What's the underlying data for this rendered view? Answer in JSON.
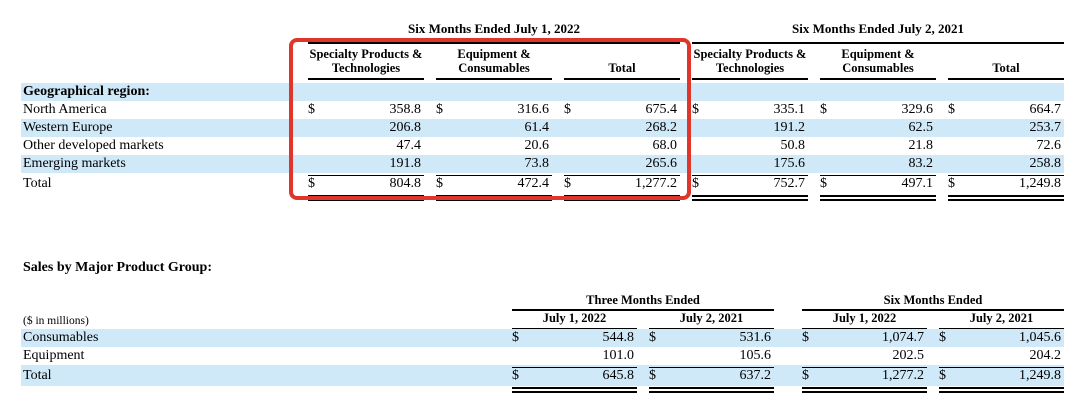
{
  "symbols": {
    "dollar": "$"
  },
  "colors": {
    "row_highlight": "#cfe9f8",
    "annotation_red": "#df352a"
  },
  "geo_table": {
    "period_headers": [
      "Six Months Ended July 1, 2022",
      "Six Months Ended July 2, 2021"
    ],
    "column_headers": [
      {
        "line1": "Specialty Products &",
        "line2": "Technologies"
      },
      {
        "line1": "Equipment &",
        "line2": "Consumables"
      },
      {
        "line1": "",
        "line2": "Total"
      }
    ],
    "section_label": "Geographical region:",
    "rows": [
      {
        "label": "North America",
        "values": [
          "358.8",
          "316.6",
          "675.4",
          "335.1",
          "329.6",
          "664.7"
        ]
      },
      {
        "label": "Western Europe",
        "values": [
          "206.8",
          "61.4",
          "268.2",
          "191.2",
          "62.5",
          "253.7"
        ]
      },
      {
        "label": "Other developed markets",
        "values": [
          "47.4",
          "20.6",
          "68.0",
          "50.8",
          "21.8",
          "72.6"
        ]
      },
      {
        "label": "Emerging markets",
        "values": [
          "191.8",
          "73.8",
          "265.6",
          "175.6",
          "83.2",
          "258.8"
        ]
      }
    ],
    "total_row": {
      "label": "Total",
      "values": [
        "804.8",
        "472.4",
        "1,277.2",
        "752.7",
        "497.1",
        "1,249.8"
      ]
    }
  },
  "product_table": {
    "title": "Sales by Major Product Group:",
    "units_note": "($ in millions)",
    "period_groups": [
      "Three Months Ended",
      "Six Months Ended"
    ],
    "date_headers": [
      "July 1, 2022",
      "July 2, 2021",
      "July 1, 2022",
      "July 2, 2021"
    ],
    "rows": [
      {
        "label": "Consumables",
        "values": [
          "544.8",
          "531.6",
          "1,074.7",
          "1,045.6"
        ]
      },
      {
        "label": "Equipment",
        "values": [
          "101.0",
          "105.6",
          "202.5",
          "204.2"
        ]
      }
    ],
    "total_row": {
      "label": "Total",
      "values": [
        "645.8",
        "637.2",
        "1,277.2",
        "1,249.8"
      ]
    }
  }
}
